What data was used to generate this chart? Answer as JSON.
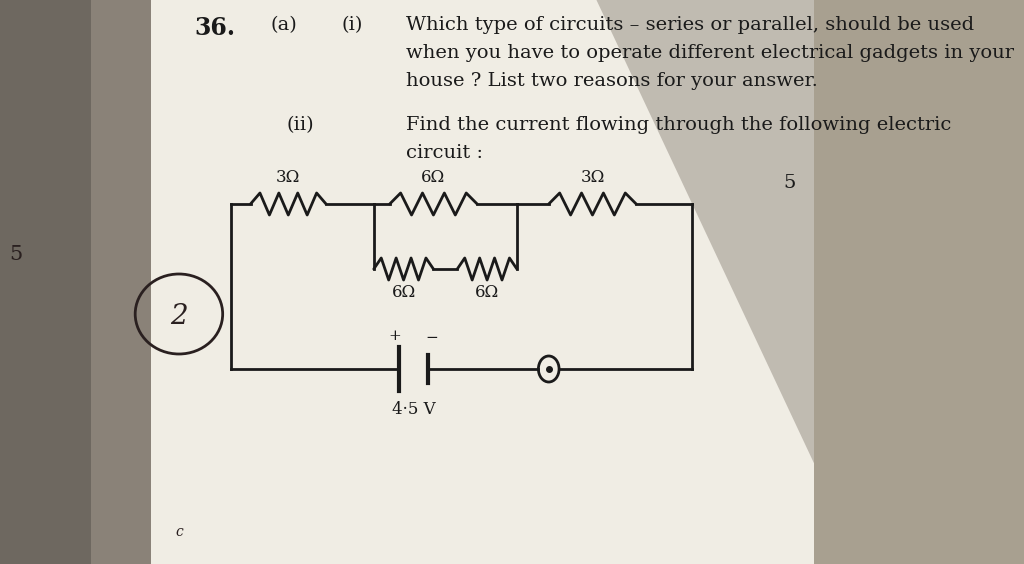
{
  "bg_color": "#a8a090",
  "page_color": "#e8e5dc",
  "shadow_color": "#787060",
  "question_number": "36.",
  "part_a": "(a)",
  "part_i": "(i)",
  "part_ii": "(ii)",
  "text_i_line1": "Which type of circuits – series or parallel, should be used",
  "text_i_line2": "when you have to operate different electrical gadgets in your",
  "text_i_line3": "house ? List two reasons for your answer.",
  "text_ii_line1": "Find the current flowing through the following electric",
  "text_ii_line2": "circuit :",
  "marks": "5",
  "battery_label": "4·5 V",
  "res_top_left": "3Ω",
  "res_top_mid": "6Ω",
  "res_top_right": "3Ω",
  "res_bot_left": "6Ω",
  "res_bot_right": "6Ω",
  "circle_label": "2",
  "font_size_main": 14,
  "font_size_label": 12,
  "font_size_qnum": 17
}
